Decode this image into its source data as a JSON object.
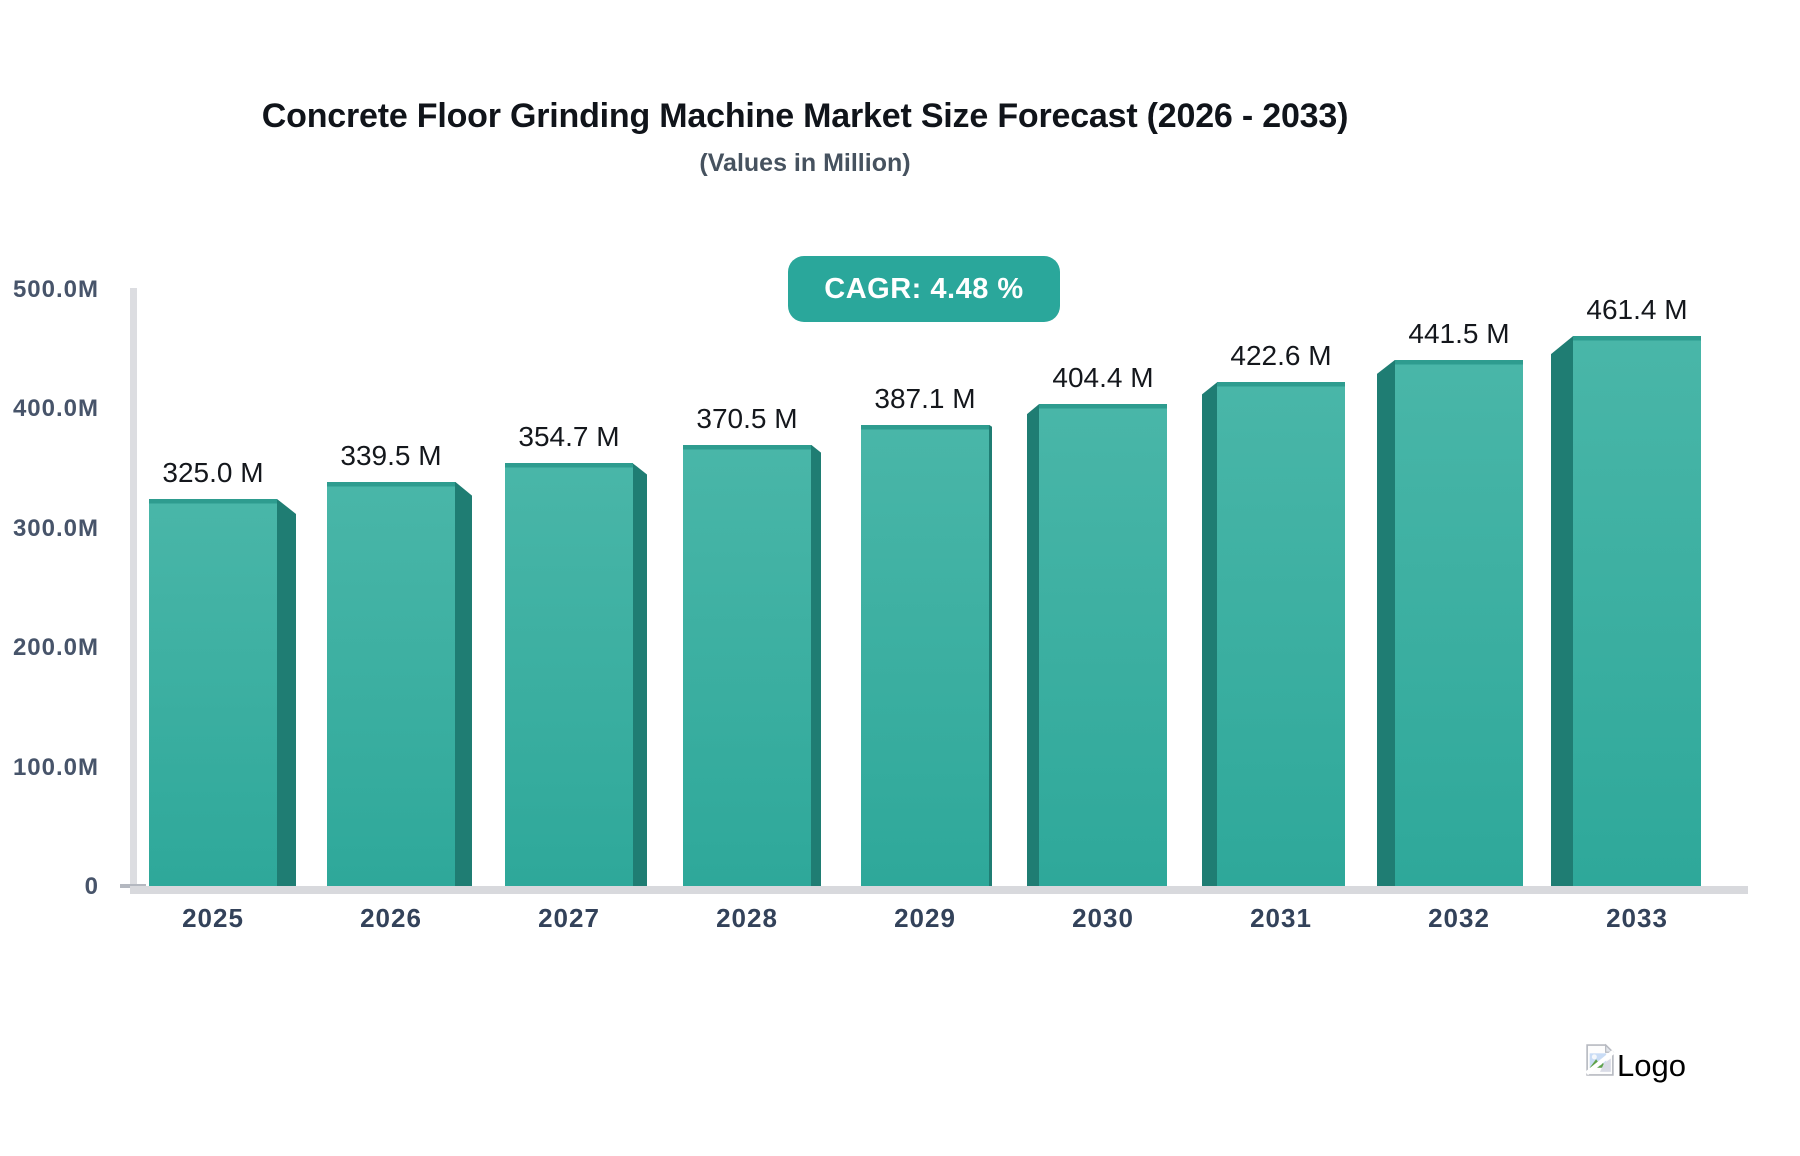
{
  "header": {
    "title": "Concrete Floor Grinding Machine Market Size Forecast (2026 - 2033)",
    "subtitle": "(Values in Million)"
  },
  "badge": {
    "label": "CAGR: 4.48 %",
    "bg_color": "#2aa79b",
    "text_color": "#ffffff"
  },
  "chart_data": {
    "type": "bar",
    "title": "Concrete Floor Grinding Machine Market Size Forecast (2026 - 2033)",
    "subtitle": "(Values in Million)",
    "unit": "Million",
    "categories": [
      "2025",
      "2026",
      "2027",
      "2028",
      "2029",
      "2030",
      "2031",
      "2032",
      "2033"
    ],
    "values": [
      325.0,
      339.5,
      354.7,
      370.5,
      387.1,
      404.4,
      422.6,
      441.5,
      461.4
    ],
    "value_labels": [
      "325.0 M",
      "339.5 M",
      "354.7 M",
      "370.5 M",
      "387.1 M",
      "404.4 M",
      "422.6 M",
      "441.5 M",
      "461.4 M"
    ],
    "cagr": "4.48 %",
    "xlabel": "",
    "ylabel": "",
    "ylim": [
      0,
      500
    ],
    "yticks": [
      {
        "value": 500,
        "label": "500.0M"
      },
      {
        "value": 400,
        "label": "400.0M"
      },
      {
        "value": 300,
        "label": "300.0M"
      },
      {
        "value": 200,
        "label": "200.0M"
      },
      {
        "value": 100,
        "label": "100.0M"
      },
      {
        "value": 0,
        "label": "0"
      }
    ],
    "grid": false,
    "legend": false,
    "style": "3d-perspective-bars",
    "colors": {
      "bar_face_top": "#49b6a8",
      "bar_face_bottom": "#2ea89a",
      "bar_top_edge": "#2e9c8f",
      "bar_side": "#1f7d73",
      "axis_line": "#dcdde1",
      "baseline": "#d8d9dd"
    }
  },
  "footer": {
    "logo_text": "Logo"
  }
}
